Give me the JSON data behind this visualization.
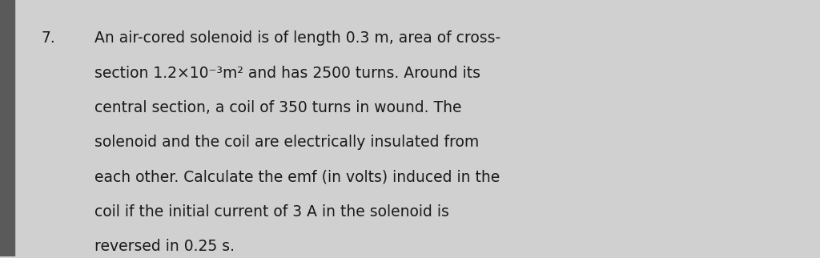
{
  "background_color": "#d0d0d0",
  "panel_color": "#e8e8e8",
  "text_color": "#1a1a1a",
  "number": "7.",
  "line1": "An air-cored solenoid is of length 0.3 m, area of cross-",
  "line2_parts": [
    {
      "text": "section 1.2×10",
      "style": "normal"
    },
    {
      "text": "−3",
      "style": "superscript"
    },
    {
      "text": "m",
      "style": "normal"
    },
    {
      "text": "2",
      "style": "superscript"
    },
    {
      "text": " and has 2500 turns. Around its",
      "style": "normal"
    }
  ],
  "line3": "central section, a coil of 350 turns in wound. The",
  "line4": "solenoid and the coil are electrically insulated from",
  "line5": "each other. Calculate the emf (in volts) induced in the",
  "line6": "coil if the initial current of 3 A in the solenoid is",
  "line7": "reversed in 0.25 s.",
  "font_size": 13.5,
  "font_family": "sans-serif",
  "left_bar_color": "#5a5a5a",
  "left_bar_width": 0.018
}
